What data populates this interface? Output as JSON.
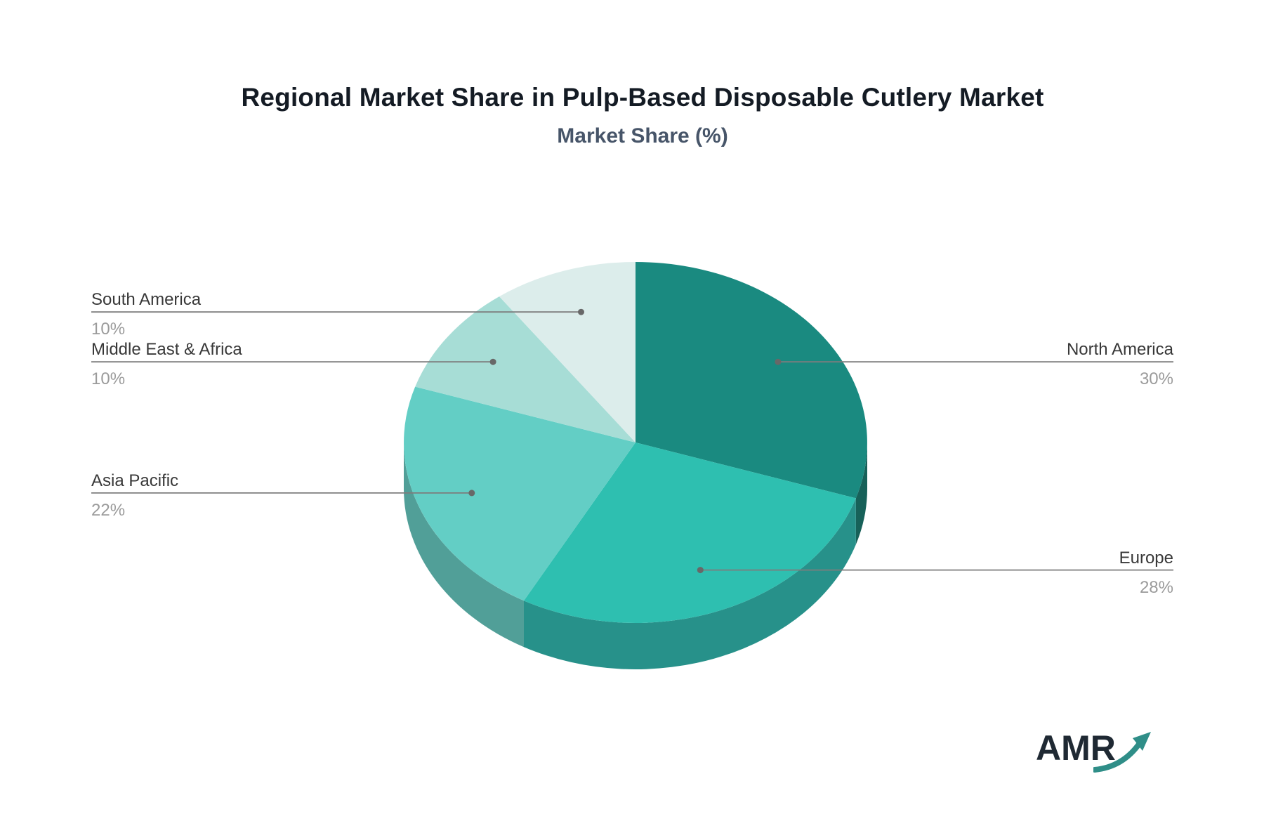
{
  "chart_data": {
    "type": "pie",
    "title": "Regional Market Share in Pulp-Based Disposable Cutlery Market",
    "subtitle": "Market Share (%)",
    "effect": "3d",
    "legend": "none",
    "direction": "clockwise",
    "start_angle_deg": 0,
    "segments": [
      {
        "label": "North America",
        "value": 30,
        "pct_label": "30%",
        "color": "#1a8a80",
        "rim_color": "#176159",
        "side": "right"
      },
      {
        "label": "Europe",
        "value": 28,
        "pct_label": "28%",
        "color": "#2ebfb0",
        "rim_color": "#27918a",
        "side": "right"
      },
      {
        "label": "Asia Pacific",
        "value": 22,
        "pct_label": "22%",
        "color": "#63cec5",
        "rim_color": "#519f98",
        "side": "left"
      },
      {
        "label": "Middle East & Africa",
        "value": 10,
        "pct_label": "10%",
        "color": "#a7ddd6",
        "side": "left"
      },
      {
        "label": "South America",
        "value": 10,
        "pct_label": "10%",
        "color": "#dcedeb",
        "side": "left"
      }
    ],
    "leader_line_color": "#7d7d7d",
    "leader_dot_color": "#686868",
    "label_color": "#383838",
    "pct_color": "#9b9b9b"
  },
  "logo": {
    "text": "AMR",
    "arrow_color": "#2f8e88"
  }
}
